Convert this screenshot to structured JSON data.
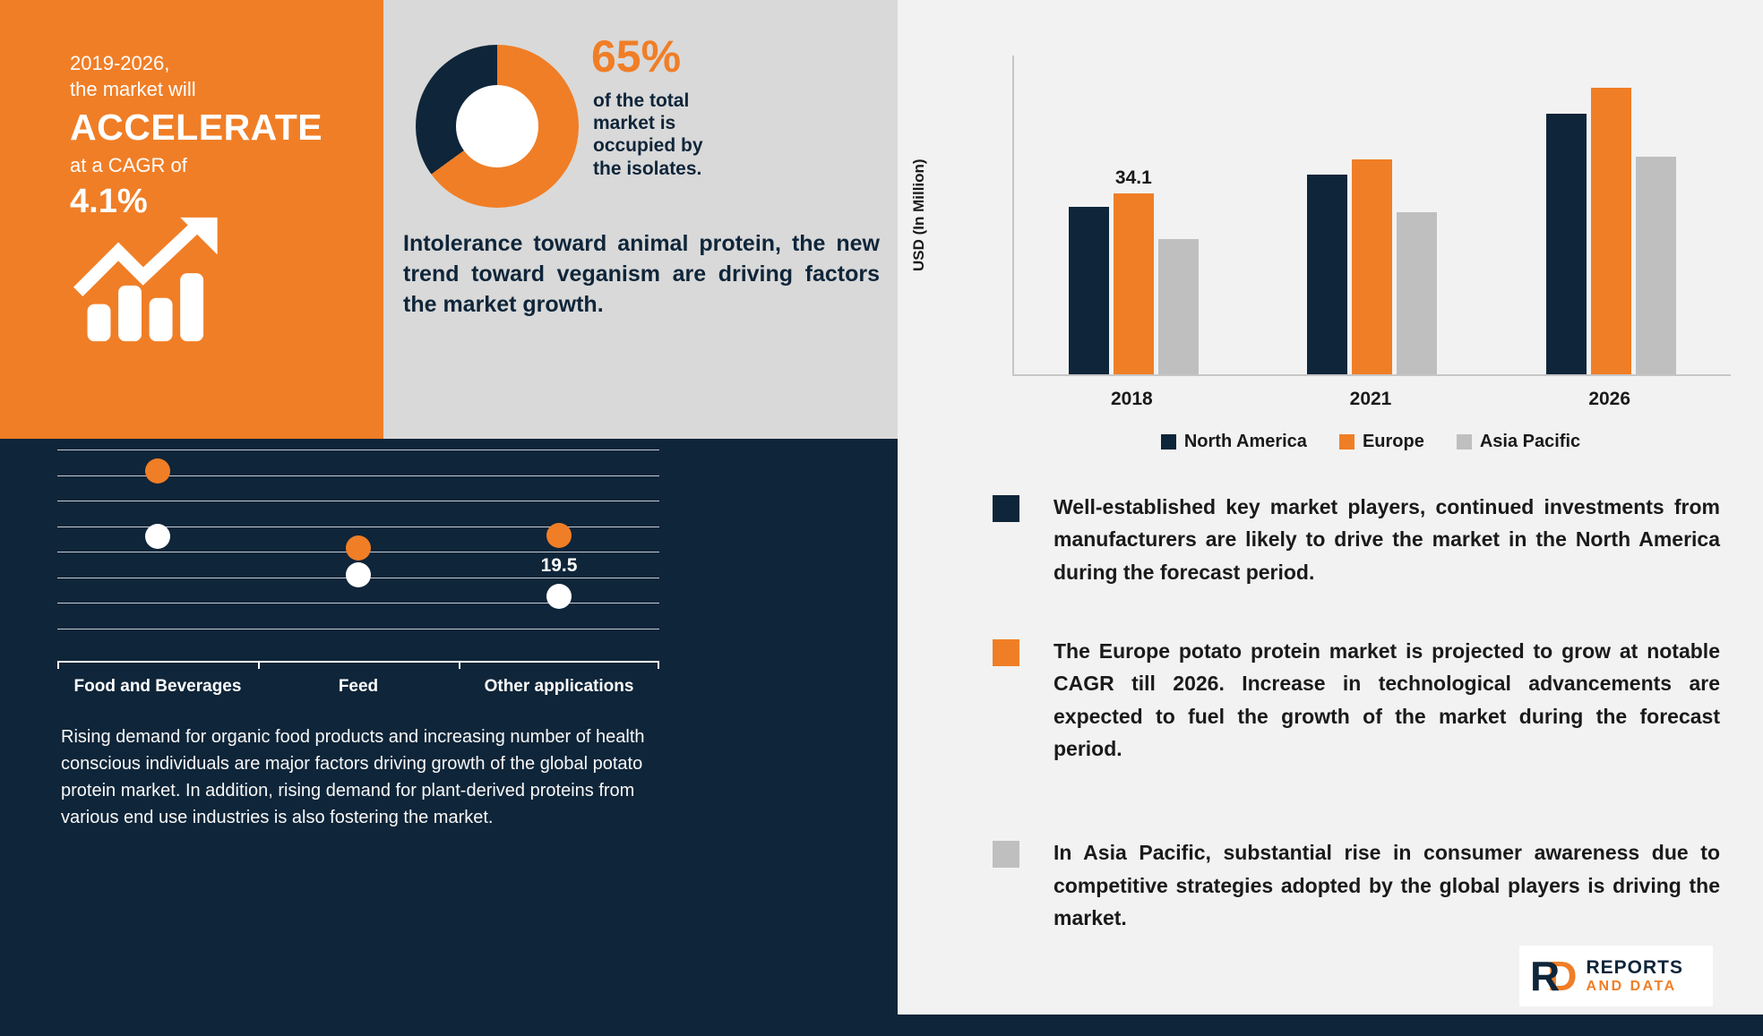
{
  "colors": {
    "orange": "#F07E26",
    "navy": "#0F2539",
    "panel_gray": "#D9D9D9",
    "light_bg": "#F2F2F2",
    "bar_gray": "#BFBFBF",
    "ink": "#1A1A1A",
    "white": "#FFFFFF"
  },
  "accelerate_panel": {
    "line1": "2019-2026,",
    "line2": "the market will",
    "line3": "ACCELERATE",
    "line4": "at a CAGR of",
    "line5": "4.1%"
  },
  "isolates_panel": {
    "stat_value": "65%",
    "stat_caption": "of the total market is occupied by the isolates.",
    "paragraph": "Intolerance toward animal protein, the new trend toward veganism are driving factors the market growth."
  },
  "applications_panel": {
    "paragraph": "Rising demand for organic food products and increasing number of health conscious individuals are major factors driving growth of the global potato protein market. In addition, rising demand for plant-derived proteins from various end use industries is also fostering the market."
  },
  "bullets": [
    {
      "key": "north-america",
      "color": "#0F2539",
      "text": "Well-established key market players, continued investments from manufacturers are likely to drive the market in the North America during the forecast period."
    },
    {
      "key": "europe",
      "color": "#F07E26",
      "text": "The Europe potato protein market is projected to grow at notable CAGR till 2026. Increase in technological advancements are expected to fuel the growth of the market during the forecast period."
    },
    {
      "key": "asia-pacific",
      "color": "#BFBFBF",
      "text": "In Asia Pacific, substantial rise in consumer awareness due to competitive strategies adopted by the global players is driving the market."
    }
  ],
  "logo": {
    "mark_r": "R",
    "mark_d": "D",
    "line1": "REPORTS",
    "line2": "AND DATA"
  },
  "chart_data": [
    {
      "id": "isolates-donut",
      "type": "pie",
      "labels": [
        "Isolates",
        "Rest of market"
      ],
      "values": [
        65,
        35
      ],
      "colors": [
        "#F07E26",
        "#0F2539"
      ],
      "annotation": "65% of the total market is occupied by the isolates."
    },
    {
      "id": "applications-dot",
      "type": "scatter",
      "categories": [
        "Food and Beverages",
        "Feed",
        "Other applications"
      ],
      "series": [
        {
          "name": "series-orange",
          "color": "#F07E26",
          "values": [
            29.3,
            23.3,
            24.3
          ]
        },
        {
          "name": "series-white",
          "color": "#FFFFFF",
          "values": [
            24.2,
            21.2,
            19.5
          ]
        }
      ],
      "ylim": [
        17,
        31
      ],
      "grid": true,
      "label": {
        "series": "series-white",
        "category": "Other applications",
        "text": "19.5"
      },
      "values_note": "only the 19.5 point carries a data label in the image; other values estimated from gridlines"
    },
    {
      "id": "regional-bar",
      "type": "bar",
      "ylabel": "USD (In Million)",
      "categories": [
        "2018",
        "2021",
        "2026"
      ],
      "series": [
        {
          "name": "North America",
          "color": "#0F2539",
          "values": [
            31.5,
            37.5,
            49
          ]
        },
        {
          "name": "Europe",
          "color": "#F07E26",
          "values": [
            34.1,
            40.5,
            54
          ]
        },
        {
          "name": "Asia Pacific",
          "color": "#BFBFBF",
          "values": [
            25.5,
            30.5,
            41
          ]
        }
      ],
      "ylim": [
        0,
        60
      ],
      "grid": false,
      "legend_position": "bottom",
      "label": {
        "series": "Europe",
        "category": "2018",
        "text": "34.1"
      },
      "values_note": "only 34.1 carries a data label in the image; other values estimated from bar heights"
    }
  ]
}
